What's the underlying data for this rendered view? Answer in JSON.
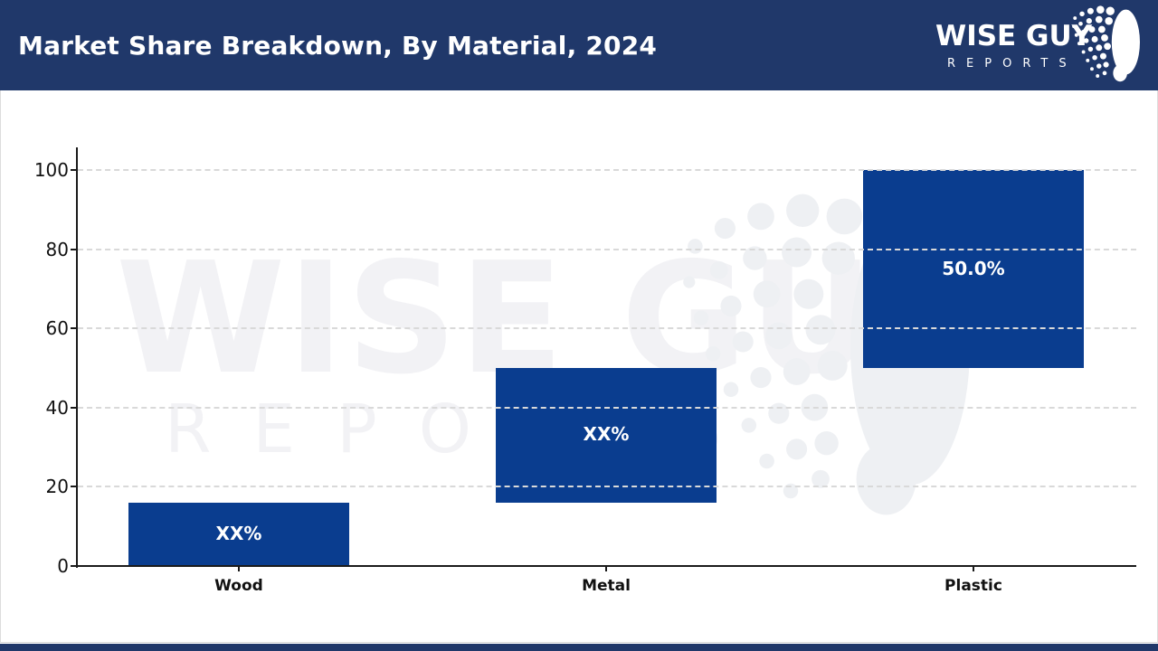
{
  "header": {
    "title": "Market Share Breakdown, By Material, 2024",
    "bg_color": "#20386a",
    "logo": {
      "line1": "WISE GUY",
      "line2": "REPORTS",
      "icon": "dotted-head-profile-icon",
      "color": "#ffffff"
    }
  },
  "watermark": {
    "line1": "WISE GUY",
    "line2": "REPORTS",
    "icon": "dotted-head-profile-icon",
    "color": "#f2f2f5"
  },
  "footer": {
    "bg_color": "#20386a"
  },
  "chart_data": {
    "type": "bar",
    "variant": "waterfall",
    "title": "Market Share Breakdown, By Material, 2024",
    "categories": [
      "Wood",
      "Metal",
      "Plastic"
    ],
    "bars": [
      {
        "category": "Wood",
        "start": 0,
        "end": 16,
        "value_label": "XX%"
      },
      {
        "category": "Metal",
        "start": 16,
        "end": 50,
        "value_label": "XX%"
      },
      {
        "category": "Plastic",
        "start": 50,
        "end": 100,
        "value_label": "50.0%"
      }
    ],
    "xlabel": "",
    "ylabel": "",
    "ylim": [
      0,
      105
    ],
    "yticks": [
      0,
      20,
      40,
      60,
      80,
      100
    ],
    "grid": "horizontal-dashed",
    "grid_color": "#d9d9d9",
    "legend": "none",
    "bar_color": "#0a3d8f",
    "bar_label_color": "#ffffff",
    "axis_color": "#1a1a1a"
  }
}
